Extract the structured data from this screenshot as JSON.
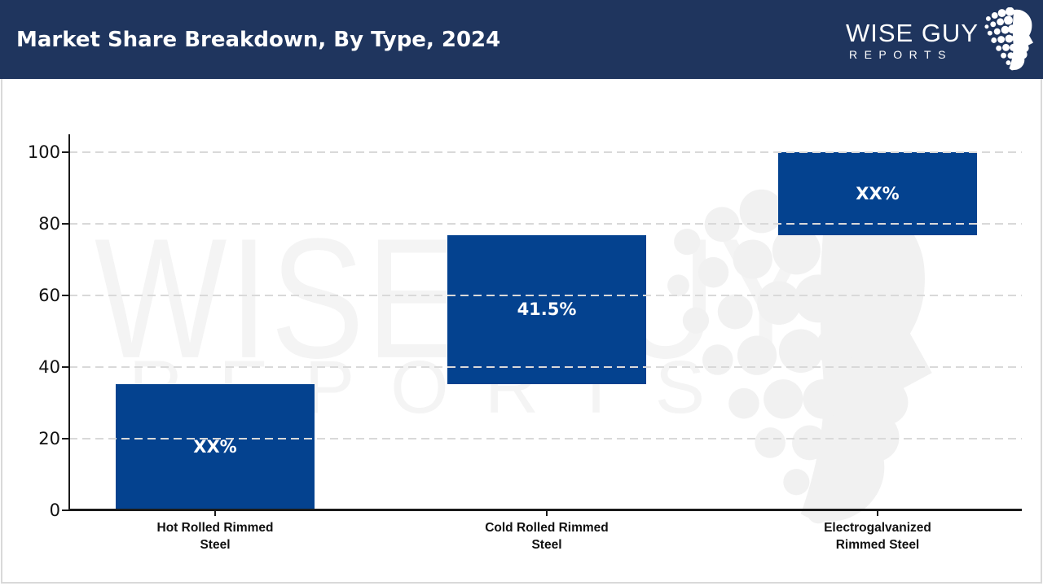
{
  "header": {
    "title": "Market Share Breakdown, By Type, 2024",
    "logo": {
      "name": "WISE GUY",
      "subtitle": "REPORTS"
    }
  },
  "watermark": {
    "line1": "WISE GUY",
    "line2": "REPORTS"
  },
  "chart_data": {
    "type": "bar",
    "subtype": "floating-waterfall-segments",
    "title": "Market Share Breakdown, By Type, 2024",
    "xlabel": "",
    "ylabel": "",
    "categories": [
      "Hot Rolled Rimmed\nSteel",
      "Cold Rolled Rimmed\nSteel",
      "Electrogalvanized\nRimmed Steel"
    ],
    "segments": [
      {
        "category": "Hot Rolled Rimmed Steel",
        "start": 0,
        "end": 35.3,
        "label": "XX%"
      },
      {
        "category": "Cold Rolled Rimmed Steel",
        "start": 35.3,
        "end": 76.8,
        "label": "41.5%"
      },
      {
        "category": "Electrogalvanized Rimmed Steel",
        "start": 76.8,
        "end": 100,
        "label": "XX%"
      }
    ],
    "ylim": [
      0,
      100
    ],
    "yticks": [
      0,
      20,
      40,
      60,
      80,
      100
    ],
    "grid": "horizontal dashed, drawn above bars",
    "legend": "none",
    "bar_color": "#04428F",
    "value_label_color": "#FFFFFF"
  },
  "colors": {
    "header_bg": "#1F355E",
    "bar": "#04428F",
    "grid": "#D9D9D9",
    "axis": "#1A1A1A",
    "watermark": "#F4F4F4",
    "card_border": "#D9D9D9"
  }
}
